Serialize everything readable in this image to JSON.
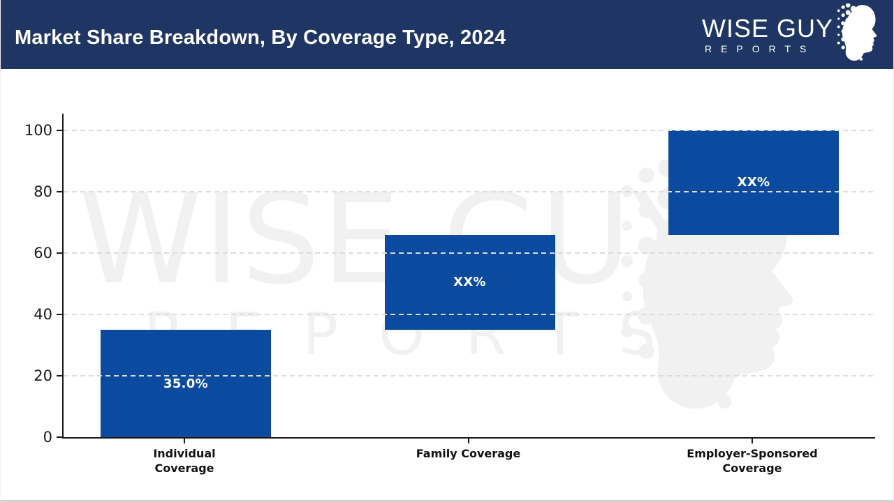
{
  "header": {
    "title": "Market Share Breakdown, By Coverage Type, 2024",
    "logo": {
      "line1": "WISE GUY",
      "line2": "REPORTS"
    }
  },
  "watermark": {
    "line1": "WISE GUY",
    "line2": "REPORTS"
  },
  "chart_data": {
    "type": "bar",
    "subtype": "waterfall-floating-bars",
    "title": "Market Share Breakdown, By Coverage Type, 2024",
    "categories": [
      "Individual\nCoverage",
      "Family Coverage",
      "Employer-Sponsored\nCoverage"
    ],
    "segments": [
      {
        "category": "Individual Coverage",
        "start": 0,
        "end": 35,
        "label": "35.0%"
      },
      {
        "category": "Family Coverage",
        "start": 35,
        "end": 66,
        "label": "XX%"
      },
      {
        "category": "Employer-Sponsored Coverage",
        "start": 66,
        "end": 100,
        "label": "XX%"
      }
    ],
    "yticks": [
      0,
      20,
      40,
      60,
      80,
      100
    ],
    "ylim": [
      0,
      100
    ],
    "xlabel": "",
    "ylabel": "",
    "bar_color": "#0a4a9f",
    "grid": "horizontal-dashed",
    "grid_color": "#dcdcdc",
    "legend": "none"
  }
}
